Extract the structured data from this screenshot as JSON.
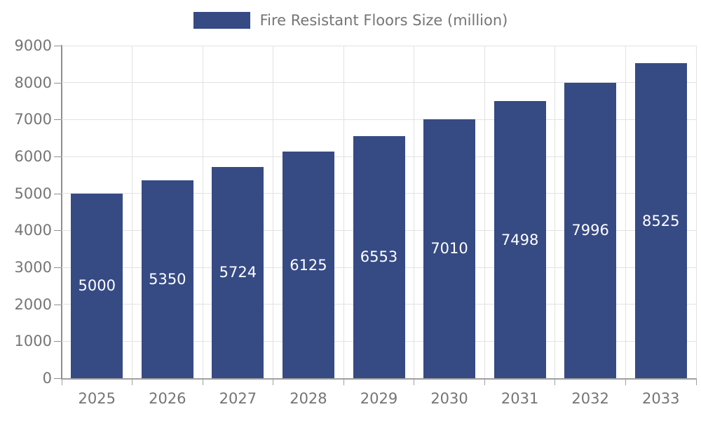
{
  "legend": {
    "label": "Fire Resistant Floors Size (million)"
  },
  "colors": {
    "bar": "#364a84",
    "grid": "#e2e2e2",
    "axis": "#a0a0a0",
    "tick_label": "#757575",
    "bar_label": "#ffffff",
    "legend_text": "#757575",
    "background": "#ffffff"
  },
  "chart_data": {
    "type": "bar",
    "title": "",
    "categories": [
      "2025",
      "2026",
      "2027",
      "2028",
      "2029",
      "2030",
      "2031",
      "2032",
      "2033"
    ],
    "series": [
      {
        "name": "Fire Resistant Floors Size (million)",
        "values": [
          5000,
          5350,
          5724,
          6125,
          6553,
          7010,
          7498,
          7996,
          8525
        ]
      }
    ],
    "xlabel": "",
    "ylabel": "",
    "ylim": [
      0,
      9000
    ],
    "yticks": [
      0,
      1000,
      2000,
      3000,
      4000,
      5000,
      6000,
      7000,
      8000,
      9000
    ],
    "grid": true,
    "legend_position": "top-center",
    "bar_labels": "inside-center"
  }
}
